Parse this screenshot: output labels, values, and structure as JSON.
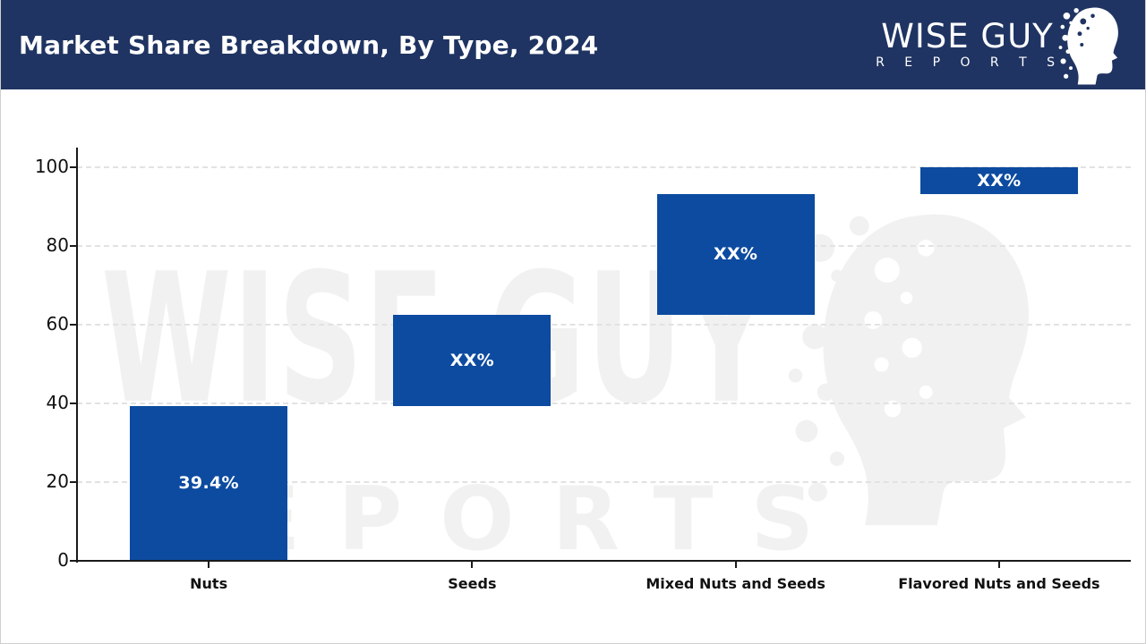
{
  "header": {
    "title": "Market Share Breakdown, By Type, 2024",
    "logo": {
      "line1": "WISE GUY",
      "line2": "R E P O R T S",
      "head_icon": "dotted-face-profile-icon"
    }
  },
  "watermark": {
    "line1": "WISE GUY",
    "line2": "REPORTS",
    "head_icon": "dotted-face-profile-icon"
  },
  "colors": {
    "header_bg": "#1f3462",
    "header_text": "#ffffff",
    "bar_fill": "#0c4ba0",
    "bar_label": "#ffffff",
    "axis": "#1a1a1a",
    "grid": "#e2e2e2",
    "tick_label": "#111111",
    "watermark": "#f1f1f1",
    "page_bg": "#ffffff",
    "border": "#cfcfcf"
  },
  "chart_data": {
    "type": "bar",
    "subtype": "waterfall-stacked-segments",
    "title": "Market Share Breakdown, By Type, 2024",
    "categories": [
      "Nuts",
      "Seeds",
      "Mixed Nuts and Seeds",
      "Flavored Nuts and Seeds"
    ],
    "segments": [
      {
        "category": "Nuts",
        "start": 0,
        "end": 39.4,
        "value": 39.4,
        "label": "39.4%"
      },
      {
        "category": "Seeds",
        "start": 39.4,
        "end": 62.6,
        "value": 23.2,
        "label": "XX%"
      },
      {
        "category": "Mixed Nuts and Seeds",
        "start": 62.6,
        "end": 93.2,
        "value": 30.6,
        "label": "XX%"
      },
      {
        "category": "Flavored Nuts and Seeds",
        "start": 93.2,
        "end": 100,
        "value": 6.8,
        "label": "XX%"
      }
    ],
    "xlabel": "",
    "ylabel": "",
    "yticks": [
      0,
      20,
      40,
      60,
      80,
      100
    ],
    "ylim": [
      0,
      105
    ],
    "grid": "horizontal-dashed",
    "legend": "none",
    "bar_color": "#0c4ba0",
    "value_labels_inside_bars": true
  }
}
